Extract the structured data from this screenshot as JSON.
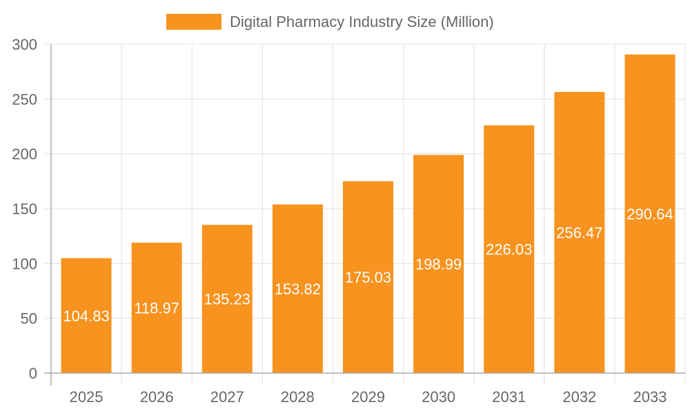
{
  "chart_data": {
    "type": "bar",
    "categories": [
      "2025",
      "2026",
      "2027",
      "2028",
      "2029",
      "2030",
      "2031",
      "2032",
      "2033"
    ],
    "series": [
      {
        "name": "Digital Pharmacy Industry Size (Million)",
        "values": [
          104.83,
          118.97,
          135.23,
          153.82,
          175.03,
          198.99,
          226.03,
          256.47,
          290.64
        ],
        "labels": [
          "104.83",
          "118.97",
          "135.23",
          "153.82",
          "175.03",
          "198.99",
          "226.03",
          "256.47",
          "290.64"
        ]
      }
    ],
    "ylim": [
      0,
      300
    ],
    "yticks": [
      "0",
      "50",
      "100",
      "150",
      "200",
      "250",
      "300"
    ],
    "grid": true,
    "legend": "top",
    "colors": {
      "bar": "#F7931E",
      "text": "#666666",
      "grid": "#E0E0E0",
      "axis": "#AAAAAA",
      "label": "#FFFFFF"
    }
  }
}
